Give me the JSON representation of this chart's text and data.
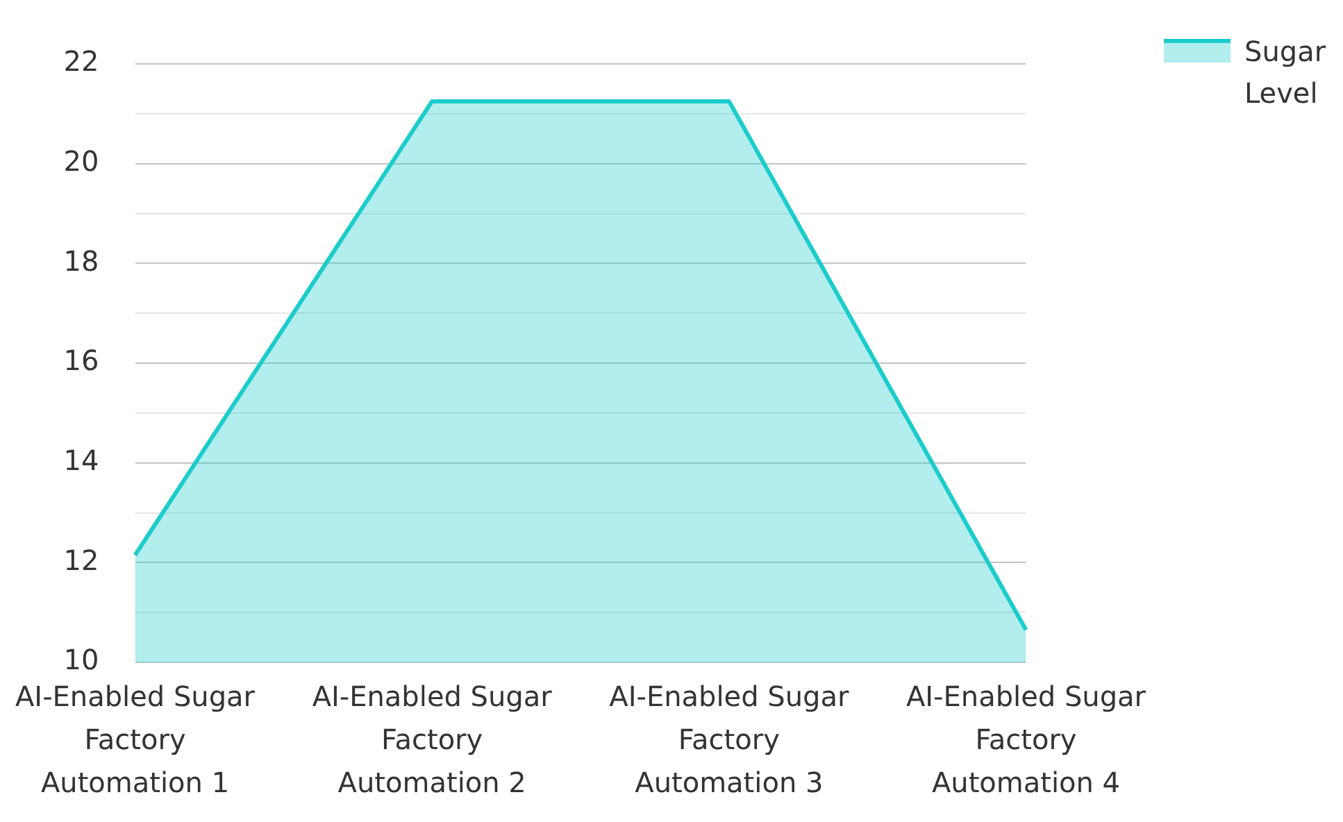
{
  "chart_data": {
    "type": "area",
    "categories": [
      "AI-Enabled Sugar Factory Automation 1",
      "AI-Enabled Sugar Factory Automation 2",
      "AI-Enabled Sugar Factory Automation 3",
      "AI-Enabled Sugar Factory Automation 4"
    ],
    "series": [
      {
        "name": "Sugar Level",
        "color": "#1ccccc",
        "values": [
          12.15,
          21.25,
          21.25,
          10.65
        ]
      }
    ],
    "ylim": [
      10,
      22
    ],
    "yticks": [
      10,
      {
        "value": 11,
        "label": null
      },
      12,
      {
        "value": 13,
        "label": null
      },
      14,
      {
        "value": 15,
        "label": null
      },
      16,
      {
        "value": 17,
        "label": null
      },
      18,
      {
        "value": 19,
        "label": null
      },
      20,
      {
        "value": 21,
        "label": null
      },
      22
    ],
    "grid": "y",
    "legend": "top right",
    "marker": "none",
    "line_style": "solid"
  }
}
